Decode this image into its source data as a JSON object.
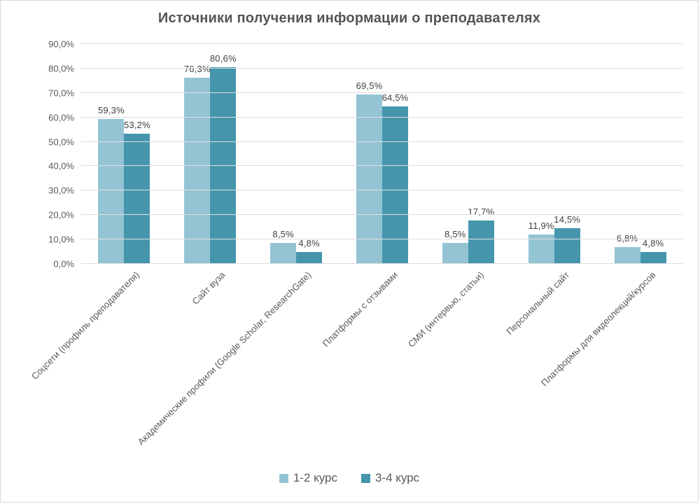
{
  "chart_data": {
    "type": "bar",
    "title": "Источники получения информации о преподавателях",
    "categories": [
      "Соцсети (профиль преподавателя)",
      "Сайт вуза",
      "Академические профили (Google Scholar, ResearchGate)",
      "Платформы с отзывами",
      "СМИ (интервью, статьи)",
      "Персональный сайт",
      "Платформы для видеолекций/курсов"
    ],
    "series": [
      {
        "name": "1-2 курс",
        "color": "#94c4d4",
        "values": [
          59.3,
          76.3,
          8.5,
          69.5,
          8.5,
          11.9,
          6.8
        ],
        "value_labels": [
          "59,3%",
          "76,3%",
          "8,5%",
          "69,5%",
          "8,5%",
          "11,9%",
          "6,8%"
        ]
      },
      {
        "name": "3-4 курс",
        "color": "#4596ad",
        "values": [
          53.2,
          80.6,
          4.8,
          64.5,
          17.7,
          14.5,
          4.8
        ],
        "value_labels": [
          "53,2%",
          "80,6%",
          "4,8%",
          "64,5%",
          "17,7%",
          "14,5%",
          "4,8%"
        ]
      }
    ],
    "y_axis": {
      "min": 0,
      "max": 90,
      "step": 10,
      "tick_labels": [
        "0,0%",
        "10,0%",
        "20,0%",
        "30,0%",
        "40,0%",
        "50,0%",
        "60,0%",
        "70,0%",
        "80,0%",
        "90,0%"
      ]
    },
    "grid": true,
    "legend_position": "bottom",
    "colors": {
      "grid": "#dedede",
      "axis_text": "#595959",
      "data_label": "#404040",
      "title_text": "#545454",
      "card_border": "#d9d9d9"
    }
  }
}
